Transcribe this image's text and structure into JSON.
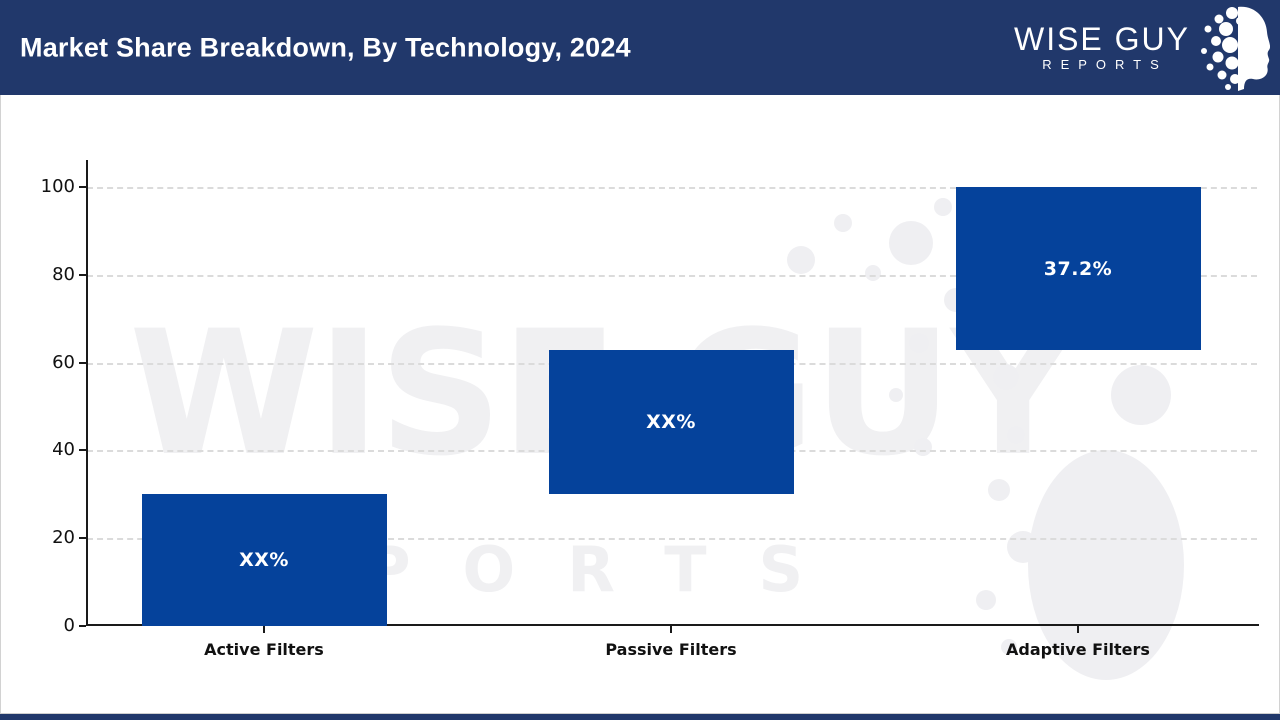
{
  "header": {
    "title": "Market Share Breakdown, By Technology, 2024",
    "bg_color": "#21386B",
    "logo": {
      "line1": "WISE GUY",
      "line2": "REPORTS"
    }
  },
  "watermark": {
    "line1": "WISE GUY",
    "line2": "REPORTS"
  },
  "chart_data": {
    "type": "bar",
    "variant": "floating-waterfall",
    "title": "Market Share Breakdown, By Technology, 2024",
    "categories": [
      "Active Filters",
      "Passive Filters",
      "Adaptive Filters"
    ],
    "series": [
      {
        "name": "Market Share (%)",
        "segments": [
          {
            "category": "Active Filters",
            "start": 0,
            "end": 30,
            "size": 30,
            "label": "XX%"
          },
          {
            "category": "Passive Filters",
            "start": 30,
            "end": 62.8,
            "size": 32.8,
            "label": "XX%"
          },
          {
            "category": "Adaptive Filters",
            "start": 62.8,
            "end": 100,
            "size": 37.2,
            "label": "37.2%"
          }
        ]
      }
    ],
    "y_ticks": [
      0,
      20,
      40,
      60,
      80,
      100
    ],
    "ylim": [
      0,
      106
    ],
    "xlabel": "",
    "ylabel": "",
    "legend": "none",
    "grid": "horizontal-dashed",
    "bar_color": "#05429B",
    "label_color": "#FFFFFF"
  },
  "footer": {
    "bg_color": "#21386B"
  }
}
